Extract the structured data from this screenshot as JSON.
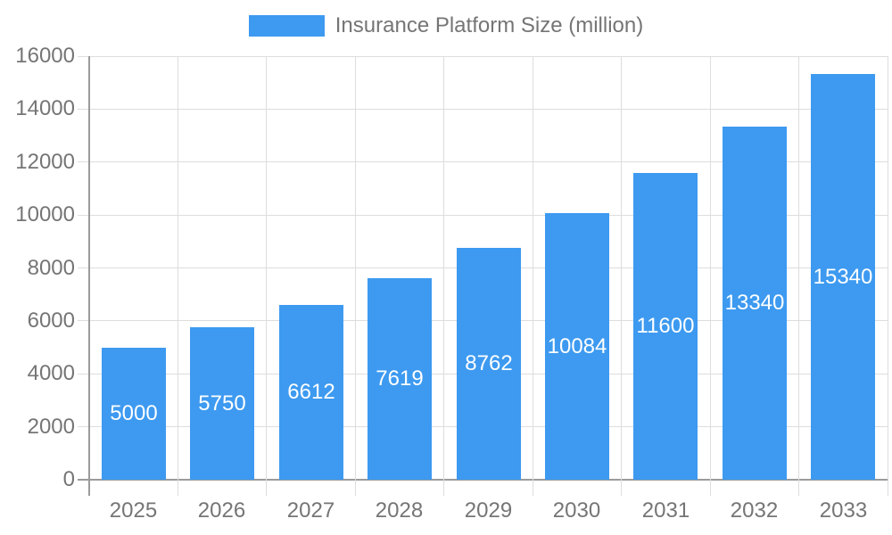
{
  "chart_data": {
    "type": "bar",
    "title": "Insurance Platform Size (million)",
    "legend_position": "top",
    "grid": true,
    "categories": [
      "2025",
      "2026",
      "2027",
      "2028",
      "2029",
      "2030",
      "2031",
      "2032",
      "2033"
    ],
    "series": [
      {
        "name": "Insurance Platform Size (million)",
        "values": [
          5000,
          5750,
          6612,
          7619,
          8762,
          10084,
          11600,
          13340,
          15340
        ]
      }
    ],
    "value_labels": [
      "5000",
      "5750",
      "6612",
      "7619",
      "8762",
      "10084",
      "11600",
      "13340",
      "15340"
    ],
    "xlabel": "",
    "ylabel": "",
    "ylim": [
      0,
      16000
    ],
    "ytick_step": 2000,
    "yticks": [
      0,
      2000,
      4000,
      6000,
      8000,
      10000,
      12000,
      14000,
      16000
    ],
    "colors": {
      "bar": "#3D9AF0",
      "value_label": "#FFFFFF",
      "axis_text": "#757575",
      "legend_text": "#757575",
      "gridline": "#DDDDDD",
      "axis_line": "#9B9B9B",
      "background": "#FFFFFF"
    }
  }
}
